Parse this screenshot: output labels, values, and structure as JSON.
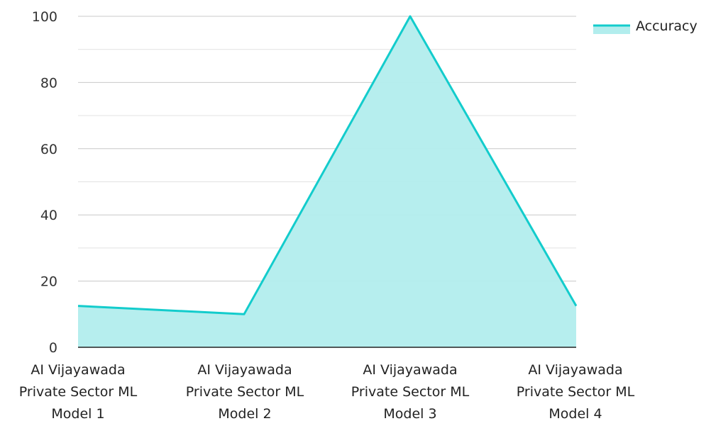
{
  "chart_data": {
    "type": "area",
    "categories": [
      [
        "AI Vijayawada",
        "Private Sector ML",
        "Model 1"
      ],
      [
        "AI Vijayawada",
        "Private Sector ML",
        "Model 2"
      ],
      [
        "AI Vijayawada",
        "Private Sector ML",
        "Model 3"
      ],
      [
        "AI Vijayawada",
        "Private Sector ML",
        "Model 4"
      ]
    ],
    "series": [
      {
        "name": "Accuracy",
        "values": [
          12.5,
          10,
          100,
          12.5
        ]
      }
    ],
    "ylim": [
      0,
      100
    ],
    "y_ticks": [
      "0",
      "20",
      "40",
      "60",
      "80",
      "100"
    ],
    "grid": true,
    "legend_position": "top-right",
    "colors": {
      "line": "#13cccc",
      "fill": "#b2eded",
      "grid": "#c8c8c8",
      "axis": "#222222"
    }
  }
}
